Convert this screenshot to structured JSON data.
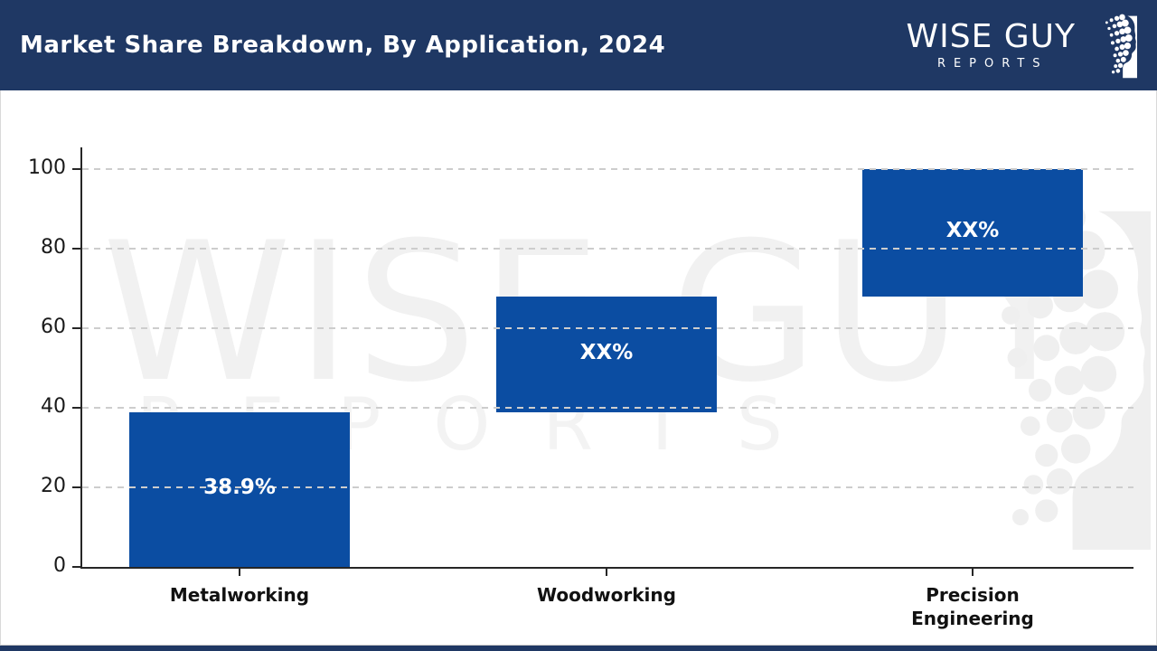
{
  "header": {
    "title": "Market Share Breakdown, By Application, 2024",
    "logo": {
      "line1": "WISE GUY",
      "line2": "REPORTS"
    }
  },
  "watermark": {
    "line1": "WISE GUY",
    "line2": "REPORTS"
  },
  "colors": {
    "header_bg": "#1f3864",
    "bar": "#0b4da2",
    "grid": "#cdcdcd",
    "axis": "#262626",
    "bar_label_text": "#ffffff",
    "watermark": "#f1f1f1"
  },
  "chart_data": {
    "type": "bar",
    "subtype": "waterfall",
    "title": "Market Share Breakdown, By Application, 2024",
    "categories": [
      "Metalworking",
      "Woodworking",
      "Precision Engineering"
    ],
    "segments": [
      {
        "category": "Metalworking",
        "start": 0,
        "end": 38.9,
        "label": "38.9%"
      },
      {
        "category": "Woodworking",
        "start": 38.9,
        "end": 68,
        "label": "XX%"
      },
      {
        "category": "Precision Engineering",
        "start": 68,
        "end": 100,
        "label": "XX%"
      }
    ],
    "values": [
      38.9,
      29.1,
      32.0
    ],
    "value_labels": [
      "38.9%",
      "XX%",
      "XX%"
    ],
    "xlabel": "",
    "ylabel": "",
    "ylim": [
      0,
      105.4
    ],
    "yticks": [
      0,
      20,
      40,
      60,
      80,
      100
    ],
    "grid": "horizontal-dashed",
    "grid_above_bars": true,
    "legend": "none"
  }
}
